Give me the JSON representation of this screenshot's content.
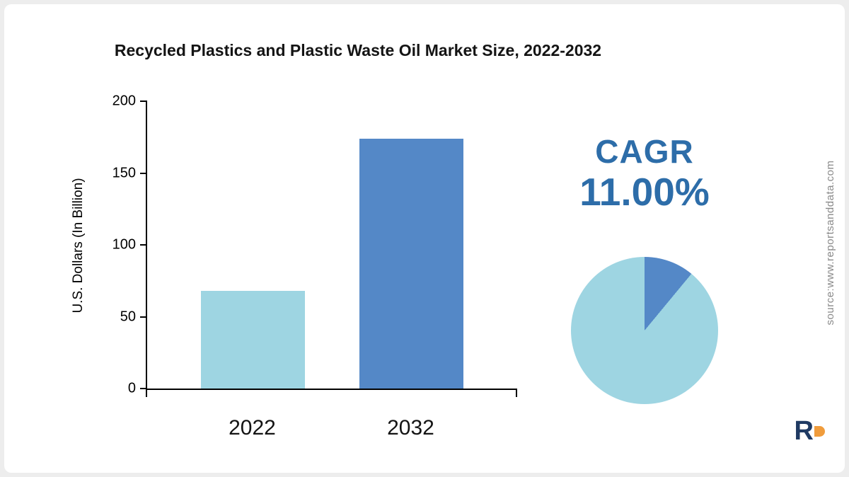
{
  "chart_data": [
    {
      "type": "bar",
      "title": "Recycled Plastics and Plastic Waste Oil Market Size, 2022-2032",
      "categories": [
        "2022",
        "2032"
      ],
      "values": [
        68,
        174
      ],
      "xlabel": "",
      "ylabel": "U.S. Dollars (In Billion)",
      "ylim": [
        0,
        200
      ],
      "yticks": [
        0,
        50,
        100,
        150,
        200
      ],
      "bar_colors": [
        "#9ed5e2",
        "#5488c7"
      ],
      "grid": false,
      "legend": "none"
    },
    {
      "type": "pie",
      "labels": [
        "CAGR slice",
        "remainder"
      ],
      "values": [
        11,
        89
      ],
      "colors": [
        "#5488c7",
        "#9ed5e2"
      ],
      "start_angle_deg": 0,
      "direction": "clockwise"
    }
  ],
  "cagr": {
    "label": "CAGR",
    "value": "11.00%",
    "percent": 11,
    "color": "#2d6da9"
  },
  "source_note": "source:www.reportsanddata.com",
  "logo": {
    "letter": "R",
    "letter_color": "#1f3a63",
    "accent_color": "#f09c3c"
  }
}
